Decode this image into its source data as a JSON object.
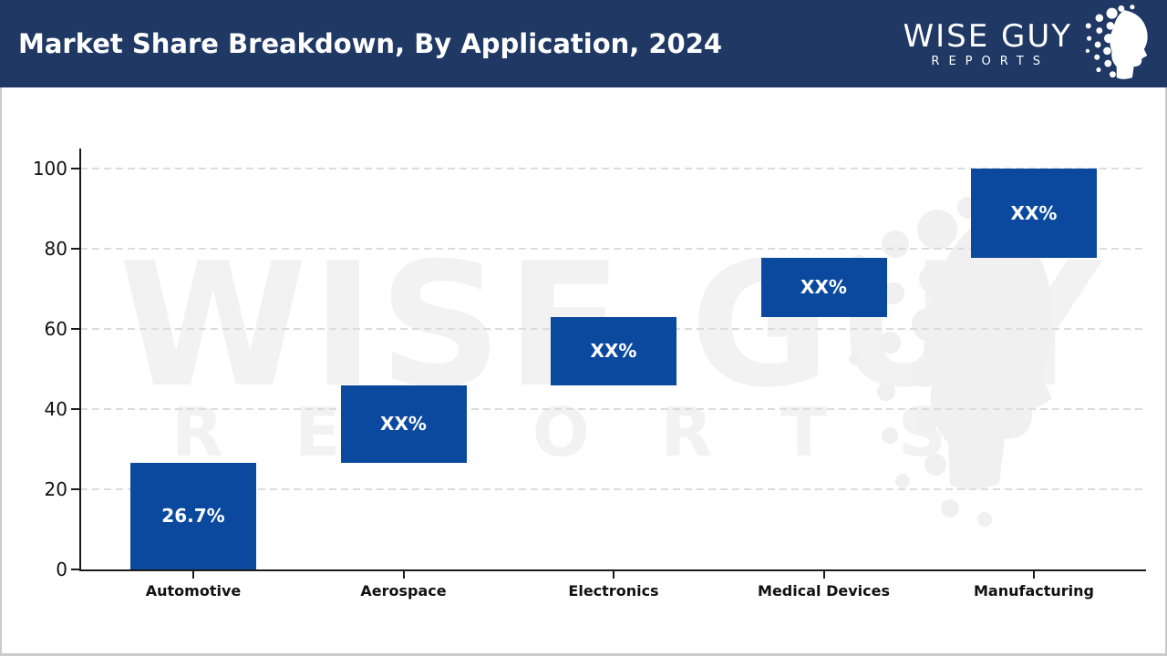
{
  "header": {
    "title": "Market Share Breakdown, By Application, 2024",
    "brand": {
      "line1": "WISE GUY",
      "line2": "REPORTS"
    }
  },
  "watermark": {
    "line1": "WISE GUY",
    "line2": "REPORTS"
  },
  "colors": {
    "header_bg": "#1F3864",
    "bar": "#0B499E",
    "grid": "#DCDCDC",
    "axis": "#1A1A1A",
    "watermark": "#F2F2F2",
    "bar_label": "#FFFFFF"
  },
  "chart_data": {
    "type": "bar",
    "subtype": "waterfall",
    "title": "Market Share Breakdown, By Application, 2024",
    "categories": [
      "Automotive",
      "Aerospace",
      "Electronics",
      "Medical Devices",
      "Manufacturing"
    ],
    "segments": [
      {
        "category": "Automotive",
        "start": 0,
        "end": 26.7,
        "value": 26.7,
        "label": "26.7%"
      },
      {
        "category": "Aerospace",
        "start": 26.7,
        "end": 46.0,
        "value": 19.3,
        "label": "XX%"
      },
      {
        "category": "Electronics",
        "start": 46.0,
        "end": 63.0,
        "value": 17.0,
        "label": "XX%"
      },
      {
        "category": "Medical Devices",
        "start": 63.0,
        "end": 77.7,
        "value": 14.7,
        "label": "XX%"
      },
      {
        "category": "Manufacturing",
        "start": 77.7,
        "end": 100.0,
        "value": 22.3,
        "label": "XX%"
      }
    ],
    "y_ticks": [
      0,
      20,
      40,
      60,
      80,
      100
    ],
    "ylim": [
      0,
      105
    ],
    "xlabel": "",
    "ylabel": "",
    "grid": "horizontal-dashed",
    "legend": "none"
  }
}
